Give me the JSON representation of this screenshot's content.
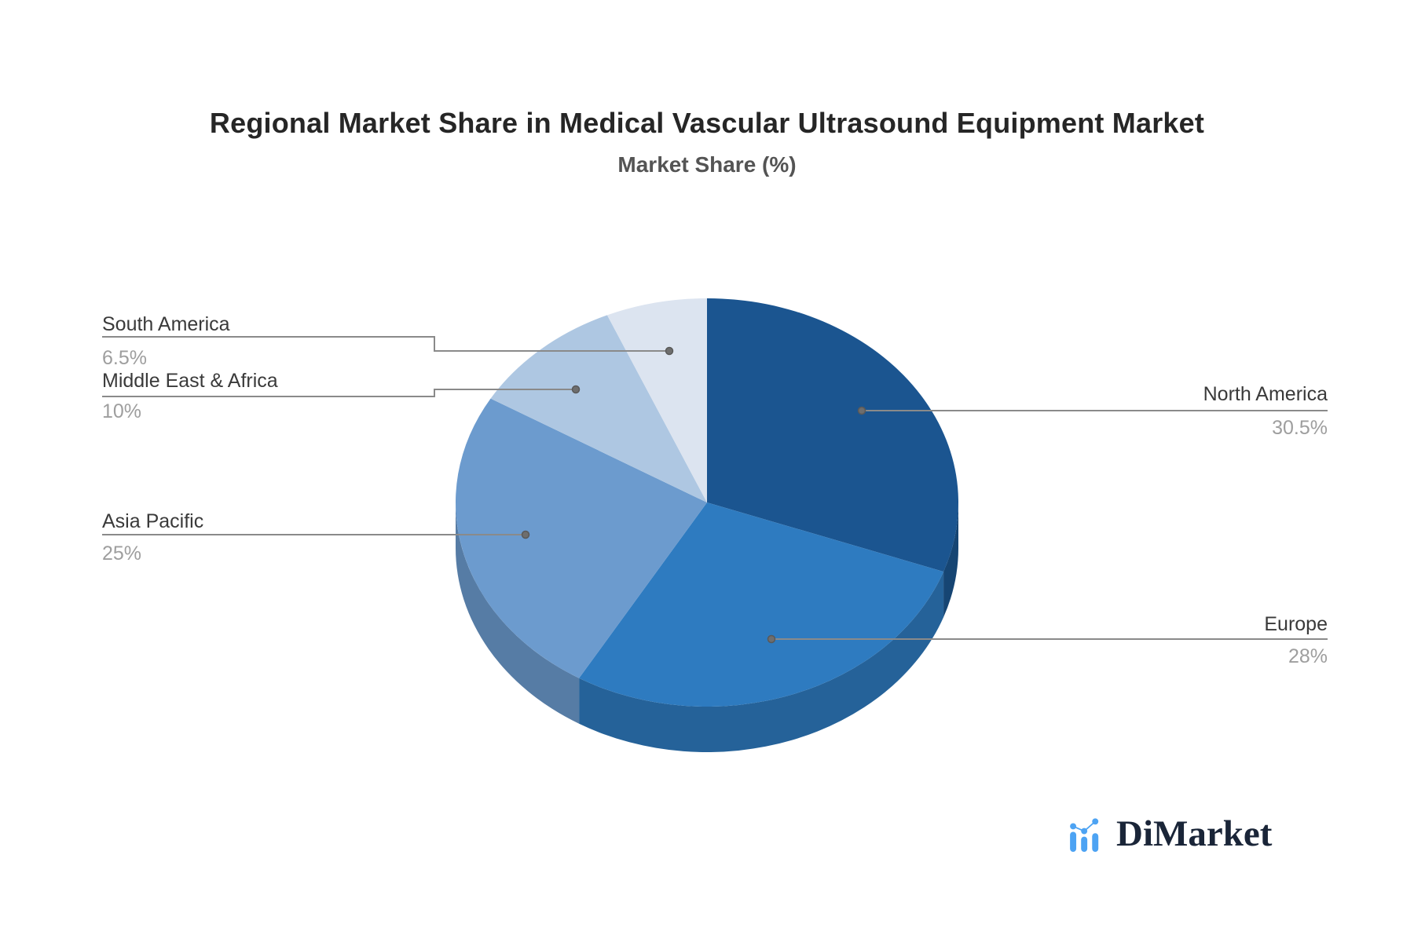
{
  "title": "Regional Market Share in Medical Vascular Ultrasound Equipment Market",
  "subtitle": "Market Share (%)",
  "chart_data": {
    "type": "pie",
    "title": "Regional Market Share in Medical Vascular Ultrasound Equipment Market",
    "subtitle": "Market Share (%)",
    "unit": "%",
    "categories": [
      "North America",
      "Europe",
      "Asia Pacific",
      "Middle East & Africa",
      "South America"
    ],
    "values": [
      30.5,
      28,
      25,
      10,
      6.5
    ],
    "slices": [
      {
        "label": "North America",
        "value": 30.5,
        "display": "30.5%",
        "color": "#1b5590",
        "side_color": "#164573"
      },
      {
        "label": "Europe",
        "value": 28,
        "display": "28%",
        "color": "#2e7bc0",
        "side_color": "#256299"
      },
      {
        "label": "Asia Pacific",
        "value": 25,
        "display": "25%",
        "color": "#6c9bce",
        "side_color": "#567ca5"
      },
      {
        "label": "Middle East & Africa",
        "value": 10,
        "display": "10%",
        "color": "#aec7e2",
        "side_color": "#8b9fb5"
      },
      {
        "label": "South America",
        "value": 6.5,
        "display": "6.5%",
        "color": "#dce4f0",
        "side_color": "#b0b6c0"
      }
    ],
    "style": {
      "effect": "3d",
      "start_angle_deg": 0,
      "direction": "clockwise",
      "legend_position": "none",
      "data_labels": "external callout lines with region name and percent"
    }
  },
  "colors": {
    "background": "#ffffff",
    "title_text": "#262626",
    "subtitle_text": "#545454",
    "label_text": "#3a3a3a",
    "percent_text": "#9e9e9e",
    "callout_line": "#8a8a8a",
    "callout_dot": "#6e6e6e",
    "logo_accent": "#4da3f3",
    "logo_text": "#1a2538"
  },
  "logo": {
    "text": "DiMarket",
    "icon": "bar-chart-logo-icon"
  }
}
